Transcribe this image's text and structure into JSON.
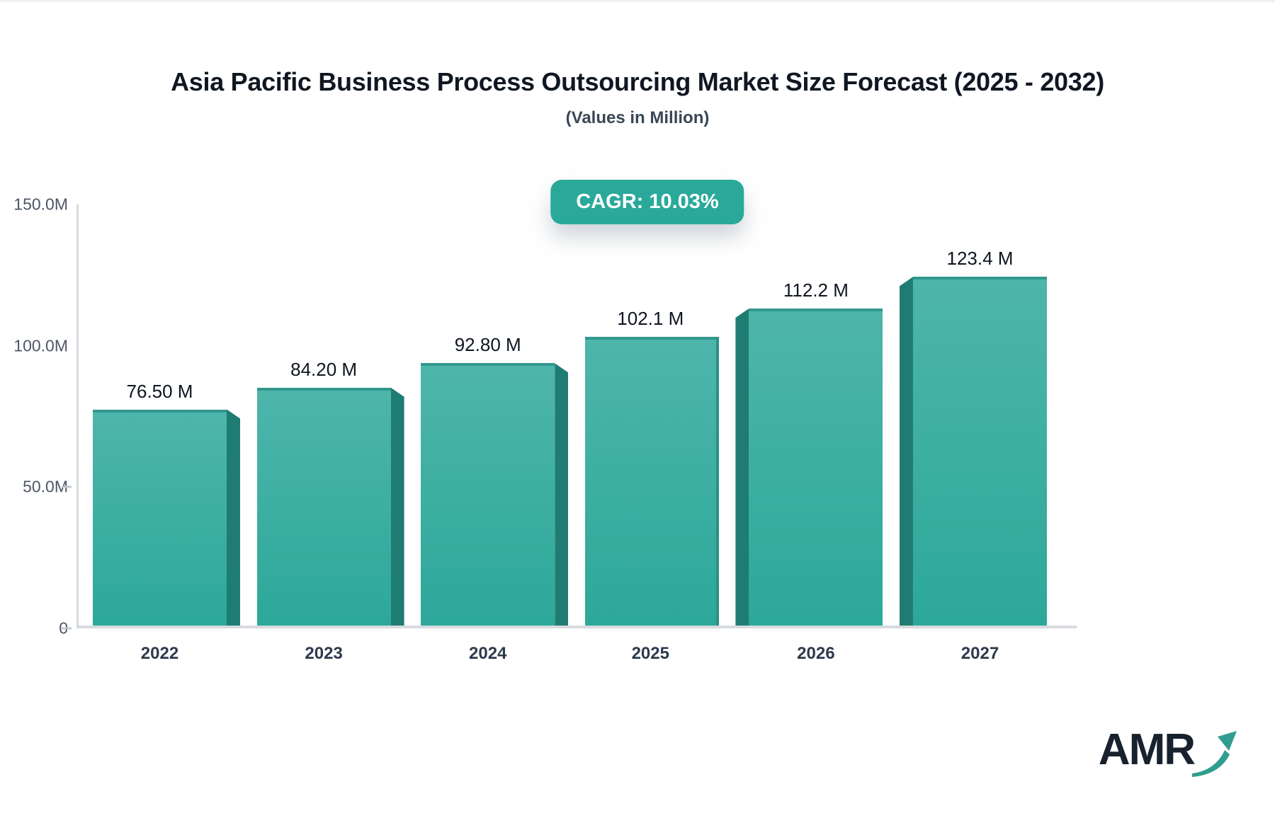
{
  "header": {
    "title": "Asia Pacific Business Process Outsourcing Market Size Forecast (2025 - 2032)",
    "subtitle": "(Values in Million)",
    "cagr_label": "CAGR: 10.03%"
  },
  "chart_data": {
    "type": "bar",
    "title": "Asia Pacific Business Process Outsourcing Market Size Forecast (2025 - 2032)",
    "subtitle": "(Values in Million)",
    "annotation": "CAGR: 10.03%",
    "categories": [
      "2022",
      "2023",
      "2024",
      "2025",
      "2026",
      "2027"
    ],
    "values": [
      76.5,
      84.2,
      92.8,
      102.1,
      112.2,
      123.4
    ],
    "value_labels": [
      "76.50 M",
      "84.20 M",
      "92.80 M",
      "102.1 M",
      "112.2 M",
      "123.4 M"
    ],
    "xlabel": "",
    "ylabel": "",
    "ylim": [
      0,
      150
    ],
    "yticks": [
      {
        "label": "150.0M",
        "value": 150,
        "dash": false
      },
      {
        "label": "100.0M",
        "value": 100,
        "dash": false
      },
      {
        "label": "50.0M",
        "value": 50,
        "dash": true
      },
      {
        "label": "0",
        "value": 0,
        "dash": true
      }
    ],
    "grid": false,
    "legend": false,
    "bar_3d_sides": [
      "right",
      "right",
      "right",
      "none",
      "left",
      "left"
    ]
  },
  "colors": {
    "bar_face_top": "#4eb5ab",
    "bar_face_bottom": "#2ca89a",
    "bar_side": "#1f7c73",
    "bar_top_edge": "#31988e",
    "badge_bg": "#2aa99b",
    "badge_text": "#ffffff",
    "axis_line": "#d7dade",
    "tick_text": "#4d5766",
    "xlabel_text": "#2d3a4d",
    "value_text": "#0e1520",
    "title_text": "#101722",
    "logo_text_color": "#18222f",
    "logo_arrow_color": "#2f9e8f"
  },
  "logo": {
    "text": "AMR"
  }
}
